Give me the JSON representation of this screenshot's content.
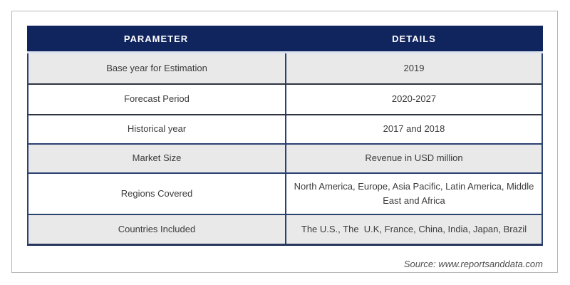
{
  "chart_data": {
    "type": "table",
    "columns": [
      "PARAMETER",
      "DETAILS"
    ],
    "rows": [
      {
        "parameter": "Base year for Estimation",
        "details": "2019",
        "shaded": true
      },
      {
        "parameter": "Forecast Period",
        "details": "2020-2027",
        "shaded": false
      },
      {
        "parameter": "Historical year",
        "details": "2017 and 2018",
        "shaded": false
      },
      {
        "parameter": "Market Size",
        "details": "Revenue in USD million",
        "shaded": true
      },
      {
        "parameter": "Regions Covered",
        "details": "North America, Europe, Asia Pacific, Latin America, Middle East and Africa",
        "shaded": false
      },
      {
        "parameter": "Countries Included",
        "details": "The U.S., The  U.K, France, China, India, Japan, Brazil",
        "shaded": true
      }
    ],
    "source": "Source: www.reportsanddata.com"
  },
  "colors": {
    "header_bg": "#10245e",
    "header_text": "#ffffff",
    "shaded_row_bg": "#e9e9e9",
    "white_row_bg": "#ffffff",
    "body_text": "#3b3b3b",
    "row_border_dark": "#2f3540",
    "row_border_navy": "#2b4170",
    "table_bottom_border": "#26365f",
    "card_border": "#b7b7b7",
    "source_text": "#4d4d4d"
  }
}
